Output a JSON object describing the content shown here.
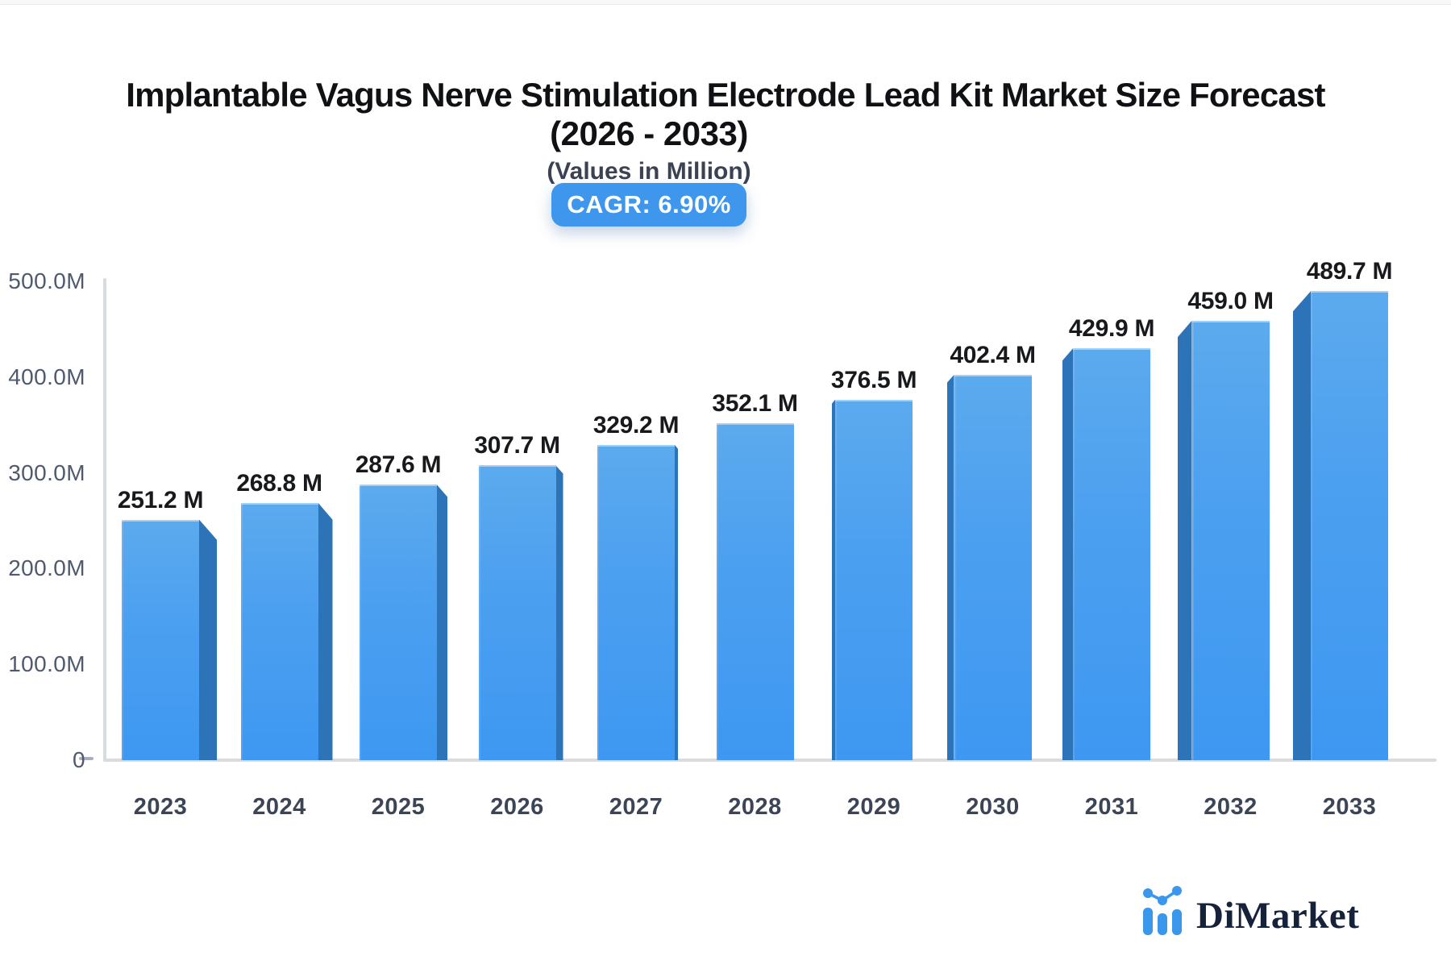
{
  "title_line1": "Implantable Vagus Nerve Stimulation Electrode Lead Kit Market Size Forecast",
  "title_line2": "(2026 - 2033)",
  "subtitle": "(Values in Million)",
  "cagr_badge": "CAGR: 6.90%",
  "brand": {
    "name": "DiMarket"
  },
  "colors": {
    "accent": "#3e97ed",
    "bar_top": "#5caaee",
    "bar_bottom": "#3e98f1",
    "bar_side": "#2c73b8",
    "axis": "#d8dbe0",
    "logo_navy": "#15223a",
    "logo_blue": "#3b97ec"
  },
  "chart_data": {
    "type": "bar",
    "title": "Implantable Vagus Nerve Stimulation Electrode Lead Kit Market Size Forecast (2026 - 2033)",
    "subtitle": "(Values in Million)",
    "annotation": "CAGR: 6.90%",
    "categories": [
      "2023",
      "2024",
      "2025",
      "2026",
      "2027",
      "2028",
      "2029",
      "2030",
      "2031",
      "2032",
      "2033"
    ],
    "values": [
      251.2,
      268.8,
      287.6,
      307.7,
      329.2,
      352.1,
      376.5,
      402.4,
      429.9,
      459.0,
      489.7
    ],
    "value_labels": [
      "251.2 M",
      "268.8 M",
      "287.6 M",
      "307.7 M",
      "329.2 M",
      "352.1 M",
      "376.5 M",
      "402.4 M",
      "429.9 M",
      "459.0 M",
      "489.7 M"
    ],
    "unit": "Million",
    "ylim": [
      0,
      500
    ],
    "y_ticks": [
      {
        "label": "500.0M",
        "value": 500
      },
      {
        "label": "400.0M",
        "value": 400
      },
      {
        "label": "300.0M",
        "value": 300
      },
      {
        "label": "200.0M",
        "value": 200
      },
      {
        "label": "100.0M",
        "value": 100
      },
      {
        "label": "0",
        "value": 0
      }
    ],
    "grid": false,
    "legend": false,
    "style": "3d-bars, perspective vanishing toward center bar"
  }
}
